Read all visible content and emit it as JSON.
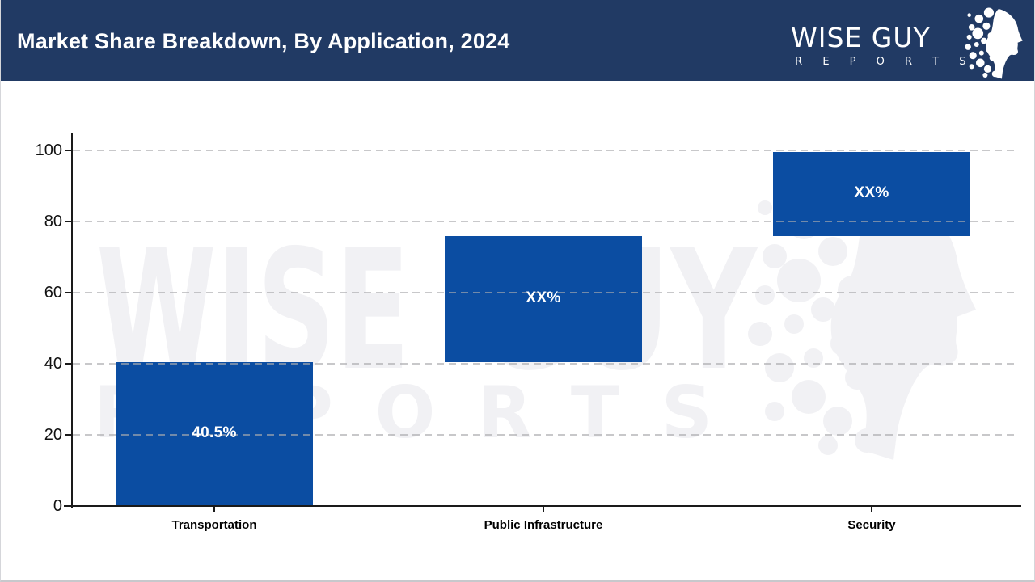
{
  "header": {
    "title": "Market Share Breakdown, By Application, 2024",
    "logo": {
      "brand_line1": "WISE GUY",
      "brand_line2": "R E P O R T S",
      "face_icon": "dotted-face-profile"
    }
  },
  "watermark": {
    "line1_left": "WISE",
    "line1_right": "GUY",
    "line2": "REPORTS",
    "face_icon": "dotted-face-profile"
  },
  "colors": {
    "header_bg": "#213A64",
    "bar_fill": "#0B4DA2",
    "bar_label_text": "#FFFFFF",
    "grid_line": "#C9C9C9",
    "axis_line": "#1A1A1A",
    "tick_label_text": "#111111",
    "watermark_fill": "#F1F1F4"
  },
  "chart_data": {
    "type": "bar",
    "subtype": "waterfall",
    "title": "Market Share Breakdown, By Application, 2024",
    "categories": [
      "Transportation",
      "Public Infrastructure",
      "Security"
    ],
    "series": [
      {
        "name": "Market Share (%)",
        "segments": [
          {
            "category": "Transportation",
            "start": 0,
            "end": 40.5,
            "label": "40.5%"
          },
          {
            "category": "Public Infrastructure",
            "start": 40.5,
            "end": 75.8,
            "label": "XX%"
          },
          {
            "category": "Security",
            "start": 75.8,
            "end": 99.5,
            "label": "XX%"
          }
        ]
      }
    ],
    "xlabel": "",
    "ylabel": "",
    "ylim": [
      0,
      104
    ],
    "yticks": [
      0,
      20,
      40,
      60,
      80,
      100
    ],
    "grid": "horizontal-dashed",
    "legend_position": "none"
  }
}
